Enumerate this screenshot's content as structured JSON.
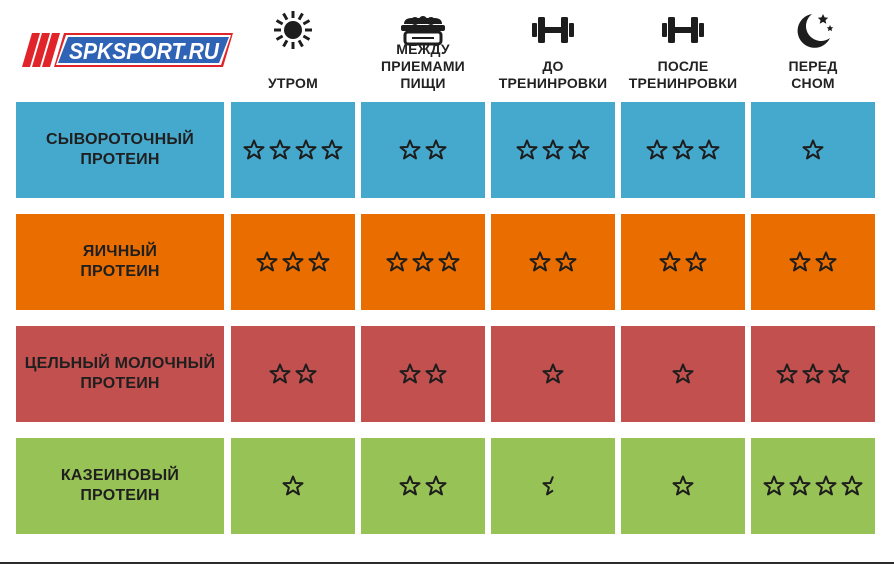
{
  "logo": {
    "text": "SPKSPORT.RU"
  },
  "columns": [
    {
      "label": "УТРОМ",
      "icon": "sun-icon"
    },
    {
      "label": "МЕЖДУ\nПРИЕМАМИ ПИЩИ",
      "icon": "food-container-icon"
    },
    {
      "label": "ДО\nТРЕНИНРОВКИ",
      "icon": "dumbbell-icon"
    },
    {
      "label": "ПОСЛЕ\nТРЕНИНРОВКИ",
      "icon": "dumbbell-icon"
    },
    {
      "label": "ПЕРЕД\nСНОМ",
      "icon": "moon-stars-icon"
    }
  ],
  "rows": [
    {
      "label": "СЫВОРОТОЧНЫЙ\nПРОТЕИН",
      "color": "#45a9cd",
      "ratings": [
        4,
        2,
        3,
        3,
        1
      ]
    },
    {
      "label": "ЯИЧНЫЙ\nПРОТЕИН",
      "color": "#ea6d00",
      "ratings": [
        3,
        3,
        2,
        2,
        2
      ]
    },
    {
      "label": "ЦЕЛЬНЫЙ МОЛОЧНЫЙ\nПРОТЕИН",
      "color": "#c2504f",
      "ratings": [
        2,
        2,
        1,
        1,
        3
      ]
    },
    {
      "label": "КАЗЕИНОВЫЙ\nПРОТЕИН",
      "color": "#97c255",
      "ratings": [
        1,
        2,
        0.5,
        1,
        4
      ]
    }
  ]
}
